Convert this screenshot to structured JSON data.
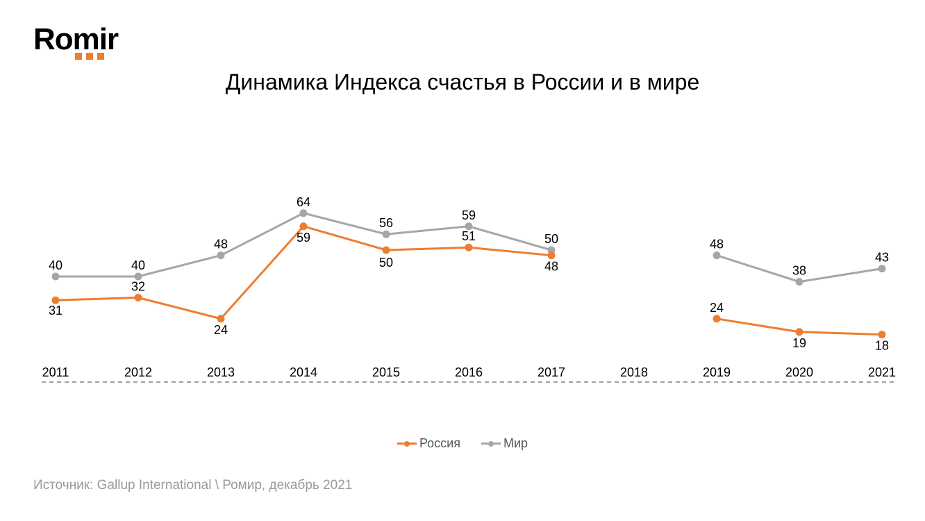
{
  "logo": {
    "text": "Romir",
    "dot_color": "#ed7d31"
  },
  "title": "Динамика Индекса счастья в России и в мире",
  "chart": {
    "type": "line",
    "categories": [
      "2011",
      "2012",
      "2013",
      "2014",
      "2015",
      "2016",
      "2017",
      "2018",
      "2019",
      "2020",
      "2021"
    ],
    "ylim_min": 0,
    "ylim_max": 100,
    "series": [
      {
        "name": "Россия",
        "color": "#ed7d31",
        "line_width": 3,
        "marker_radius": 5,
        "values": [
          31,
          32,
          24,
          59,
          50,
          51,
          48,
          null,
          24,
          19,
          18
        ],
        "label_dy": [
          21,
          -10,
          22,
          22,
          24,
          -10,
          22,
          0,
          -10,
          22,
          22
        ]
      },
      {
        "name": "Мир",
        "color": "#a6a6a6",
        "line_width": 3,
        "marker_radius": 5,
        "values": [
          40,
          40,
          48,
          64,
          56,
          59,
          50,
          null,
          48,
          38,
          43
        ],
        "label_dy": [
          -10,
          -10,
          -10,
          -10,
          -10,
          -10,
          -10,
          0,
          -10,
          -10,
          -10
        ]
      }
    ],
    "axis_color": "#808080",
    "tick_fontsize": 18,
    "label_fontsize": 18,
    "background_color": "#ffffff"
  },
  "legend": {
    "items": [
      {
        "label": "Россия",
        "color": "#ed7d31"
      },
      {
        "label": "Мир",
        "color": "#a6a6a6"
      }
    ]
  },
  "source": "Источник: Gallup International \\ Ромир, декабрь 2021"
}
